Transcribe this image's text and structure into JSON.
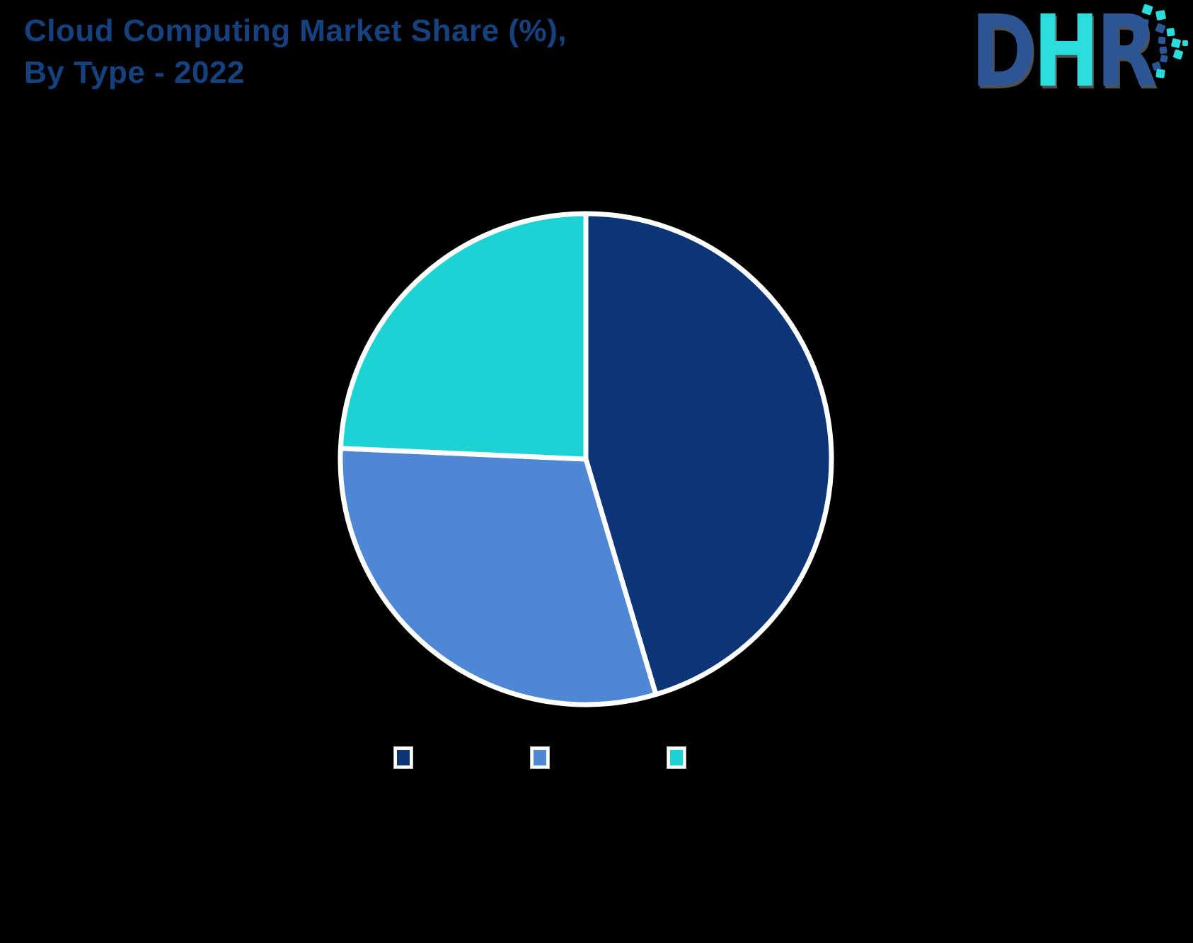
{
  "page": {
    "background": "#000000"
  },
  "header": {
    "title_line1": "Cloud Computing Market Share (%),",
    "title_line2": "By Type - 2022",
    "title_color": "#15427F"
  },
  "logo": {
    "name": "DHR",
    "letters": [
      {
        "char": "D",
        "color": "#2B5594"
      },
      {
        "char": "H",
        "color": "#2BDCDC"
      },
      {
        "char": "R",
        "color": "#2B5594"
      }
    ],
    "dot_teal": "#2BDCDC",
    "dot_navy": "#2B5594"
  },
  "chart_data": {
    "type": "pie",
    "title": "Cloud Computing Market Share (%), By Type - 2022",
    "slices": [
      {
        "value_pct": 45.4,
        "color": "#0B3577"
      },
      {
        "value_pct": 30.3,
        "color": "#4E87D3"
      },
      {
        "value_pct": 24.3,
        "color": "#1CD2D2"
      }
    ],
    "start_angle": "12-oclock",
    "direction": "clockwise",
    "slice_border_color": "#FFFFFF",
    "slice_labels_rendered": false,
    "legend_position": "bottom",
    "legend_labels_rendered": false
  }
}
